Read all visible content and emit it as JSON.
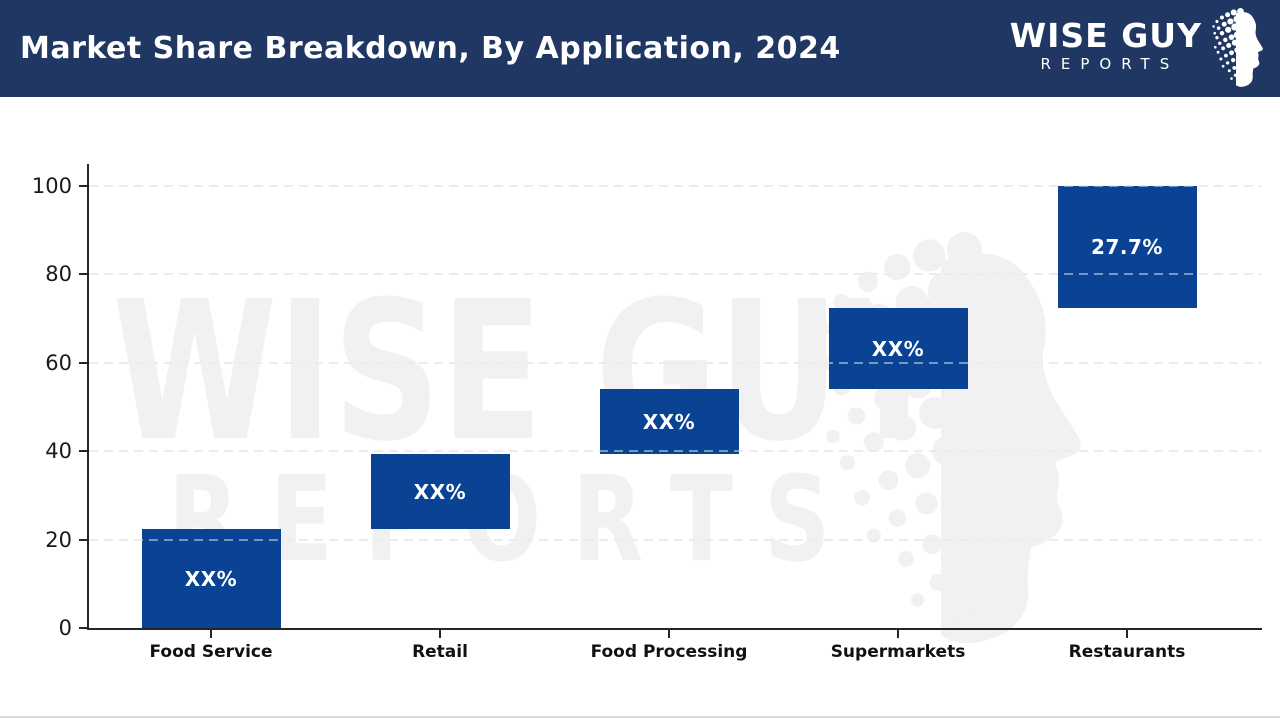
{
  "header": {
    "title": "Market Share Breakdown, By Application, 2024",
    "logo": {
      "line1": "WISE GUY",
      "line2": "REPORTS"
    }
  },
  "watermark": {
    "line1": "WISE GUY",
    "line2": "REPORTS"
  },
  "chart_data": {
    "type": "bar",
    "subtype": "waterfall",
    "title": "Market Share Breakdown, By Application, 2024",
    "xlabel": "",
    "ylabel": "",
    "categories": [
      "Food Service",
      "Retail",
      "Food Processing",
      "Supermarkets",
      "Restaurants"
    ],
    "segments": [
      {
        "category": "Food Service",
        "start": 0,
        "end": 22.3,
        "label": "XX%"
      },
      {
        "category": "Retail",
        "start": 22.3,
        "end": 39.4,
        "label": "XX%"
      },
      {
        "category": "Food Processing",
        "start": 39.4,
        "end": 54.0,
        "label": "XX%"
      },
      {
        "category": "Supermarkets",
        "start": 54.0,
        "end": 72.3,
        "label": "XX%"
      },
      {
        "category": "Restaurants",
        "start": 72.3,
        "end": 100,
        "label": "27.7%"
      }
    ],
    "yticks": [
      0,
      20,
      40,
      60,
      80,
      100
    ],
    "ylim": [
      0,
      105
    ],
    "grid": true,
    "grid_style": "dashed",
    "legend": false
  },
  "colors": {
    "header_bg": "#213763",
    "bar": "#0a4294",
    "bar_label": "#ffffff",
    "grid": "#dcdcdc",
    "axis": "#262626",
    "tick_label": "#1a1a1a",
    "watermark": "#f1f1f4",
    "bottom_rule": "#d9d9d9"
  }
}
